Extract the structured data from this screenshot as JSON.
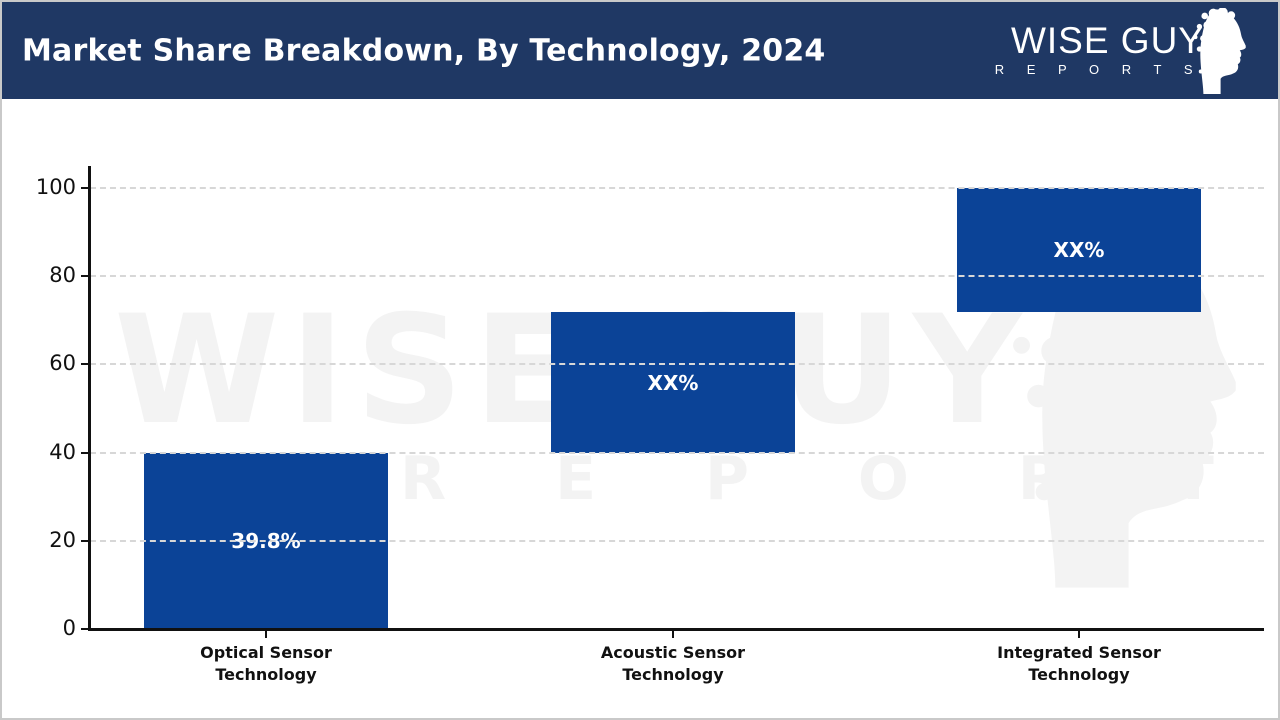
{
  "header": {
    "title": "Market Share Breakdown, By Technology, 2024",
    "bg_color": "#1f3864",
    "logo": {
      "line1": "WISE GUY",
      "line2": "R E P O R T S"
    }
  },
  "watermark": {
    "line1": "WISE GUY",
    "line2": "R E P O R T S"
  },
  "chart_data": {
    "type": "bar",
    "subtype": "waterfall",
    "title": "Market Share Breakdown, By Technology, 2024",
    "categories": [
      "Optical Sensor\nTechnology",
      "Acoustic Sensor\nTechnology",
      "Integrated Sensor\nTechnology"
    ],
    "segments": [
      {
        "category": "Optical Sensor Technology",
        "start": 0,
        "end": 39.8,
        "label": "39.8%"
      },
      {
        "category": "Acoustic Sensor Technology",
        "start": 39.8,
        "end": 71.8,
        "label": "XX%"
      },
      {
        "category": "Integrated Sensor Technology",
        "start": 71.8,
        "end": 100,
        "label": "XX%"
      }
    ],
    "yticks": [
      0,
      20,
      40,
      60,
      80,
      100
    ],
    "ylim": [
      0,
      104.5
    ],
    "xlabel": "",
    "ylabel": "",
    "grid": "horizontal-dashed",
    "legend": "none",
    "bar_color": "#0b4397",
    "bar_label_color": "#ffffff",
    "axis_color": "#111111",
    "grid_color": "#d7d7d7"
  }
}
